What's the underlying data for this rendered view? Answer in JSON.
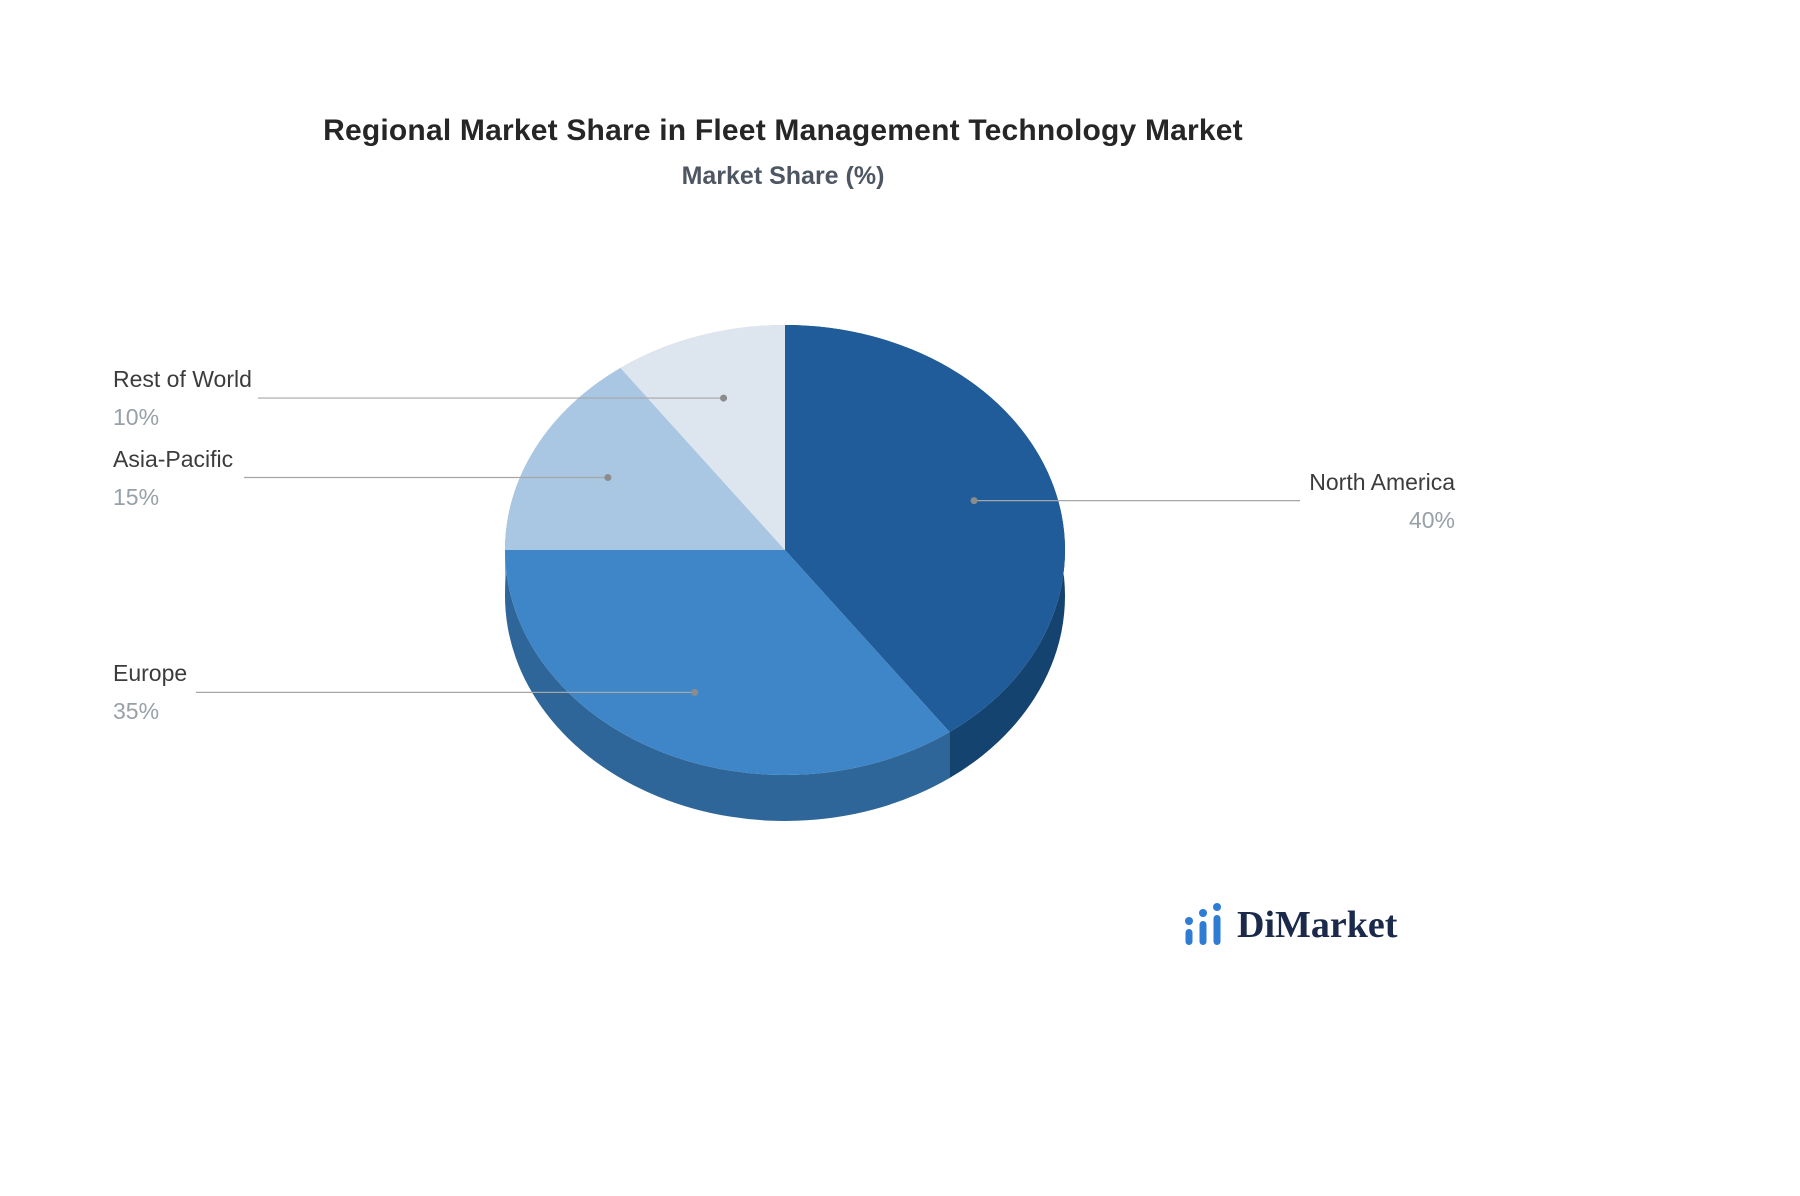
{
  "chart_data": {
    "type": "pie",
    "title": "Regional Market Share in Fleet Management Technology Market",
    "subtitle": "Market Share (%)",
    "labels": [
      "North America",
      "Europe",
      "Asia-Pacific",
      "Rest of World"
    ],
    "values": [
      40,
      35,
      15,
      10
    ],
    "pct_labels": [
      "40%",
      "35%",
      "15%",
      "10%"
    ],
    "colors": [
      "#1F5C99",
      "#3E86C7",
      "#A9C7E2",
      "#DDE5EF"
    ],
    "side_colors": [
      "#15436F",
      "#2E6699",
      "#86ABCD",
      "#BCC7D8"
    ],
    "start_angle_deg": 0,
    "direction": "clockwise",
    "effect": "3d",
    "legend_position": "none",
    "label_style": "callout-lines",
    "callout_line_color": "#a6a6a6",
    "callout_dot_color": "#8c8c8c"
  },
  "branding": {
    "logo_text": "DiMarket",
    "logo_icon": "bar-chart-icon",
    "logo_text_color": "#1b2a4a",
    "logo_icon_color": "#2E7CD4"
  }
}
